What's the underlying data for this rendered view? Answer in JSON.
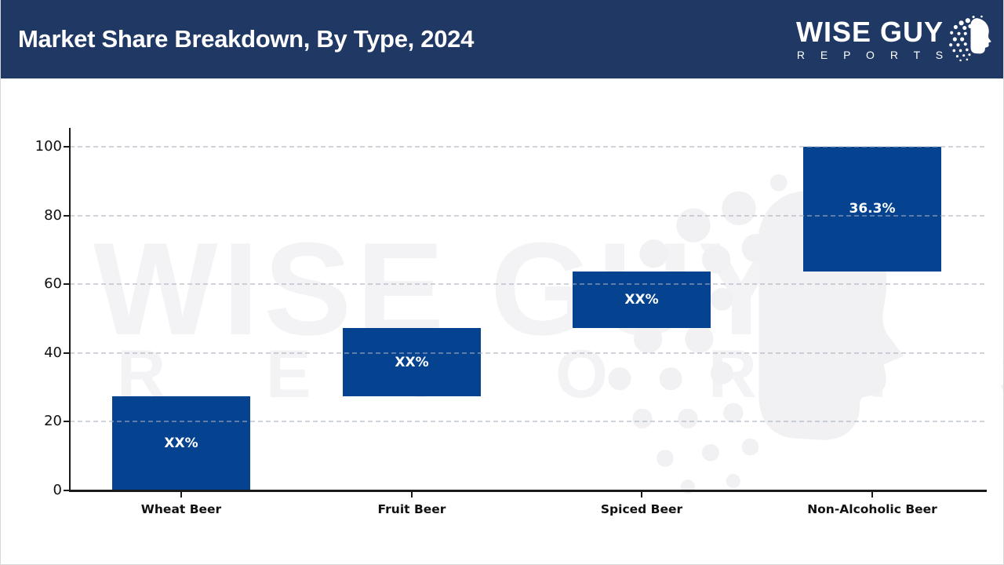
{
  "header": {
    "title": "Market Share Breakdown, By Type, 2024",
    "logo": {
      "brand": "WISE GUY",
      "sub": "R E P O R T S"
    }
  },
  "watermark": {
    "brand": "WISE GUY",
    "sub": "R E P O R T S"
  },
  "colors": {
    "header_bg": "#1F3864",
    "bar": "#05428F",
    "bar_label": "#FFFFFF",
    "axis": "#1A1A1A",
    "watermark": "#F1F1F4"
  },
  "chart_data": {
    "type": "bar",
    "subtype": "waterfall",
    "title": "Market Share Breakdown, By Type, 2024",
    "categories": [
      "Wheat Beer",
      "Fruit Beer",
      "Spiced Beer",
      "Non-Alcoholic Beer"
    ],
    "segments": [
      {
        "category": "Wheat Beer",
        "start": 0,
        "end": 27.3,
        "label": "XX%"
      },
      {
        "category": "Fruit Beer",
        "start": 27.3,
        "end": 47.2,
        "label": "XX%"
      },
      {
        "category": "Spiced Beer",
        "start": 47.2,
        "end": 63.7,
        "label": "XX%"
      },
      {
        "category": "Non-Alcoholic Beer",
        "start": 63.7,
        "end": 100,
        "label": "36.3%"
      }
    ],
    "y_ticks": [
      0,
      20,
      40,
      60,
      80,
      100
    ],
    "ylim": [
      0,
      100
    ],
    "xlabel": "",
    "ylabel": "",
    "grid": "dashed-horizontal",
    "legend": "none"
  }
}
